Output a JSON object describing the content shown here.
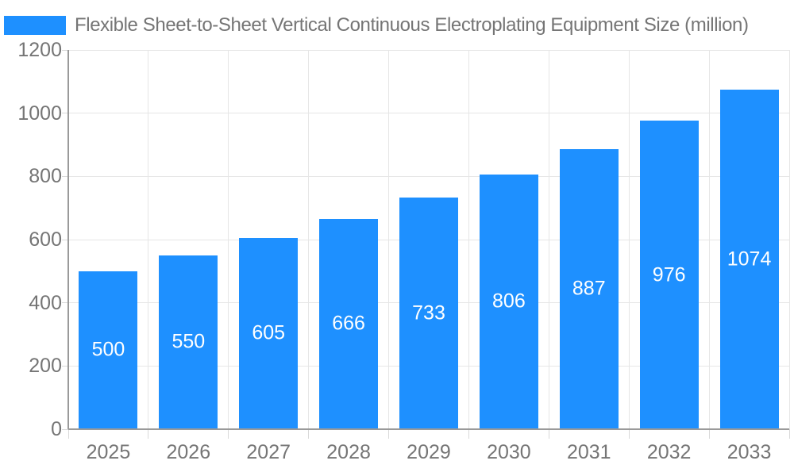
{
  "legend": {
    "series_label": "Flexible Sheet-to-Sheet Vertical Continuous Electroplating Equipment Size (million)",
    "position": "top-left"
  },
  "colors": {
    "bar": "#1E90FF",
    "bar_label": "#FFFFFF",
    "text": "#757575",
    "grid": "#E6E6E6",
    "axis": "#9A9A9A",
    "tick": "#D9D9D9",
    "background": "#FFFFFF"
  },
  "chart_data": {
    "type": "bar",
    "title": "Flexible Sheet-to-Sheet Vertical Continuous Electroplating Equipment Size (million)",
    "categories": [
      "2025",
      "2026",
      "2027",
      "2028",
      "2029",
      "2030",
      "2031",
      "2032",
      "2033"
    ],
    "values": [
      500,
      550,
      605,
      666,
      733,
      806,
      887,
      976,
      1074
    ],
    "xlabel": "",
    "ylabel": "",
    "ylim": [
      0,
      1200
    ],
    "yticks": [
      0,
      200,
      400,
      600,
      800,
      1000,
      1200
    ],
    "grid": true,
    "legend_position": "top-left",
    "bar_labels_visible": true
  }
}
